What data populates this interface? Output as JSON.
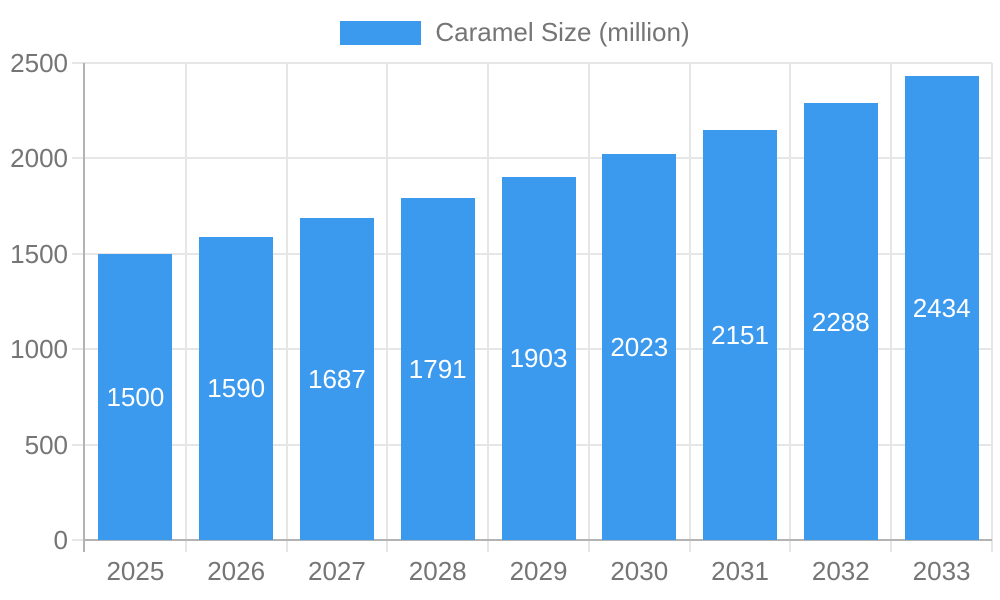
{
  "legend": {
    "label": "Caramel Size (million)",
    "swatch_color": "#3b99ee"
  },
  "chart_data": {
    "type": "bar",
    "title": "",
    "xlabel": "",
    "ylabel": "",
    "categories": [
      "2025",
      "2026",
      "2027",
      "2028",
      "2029",
      "2030",
      "2031",
      "2032",
      "2033"
    ],
    "series": [
      {
        "name": "Caramel Size (million)",
        "values": [
          1500,
          1590,
          1687,
          1791,
          1903,
          2023,
          2151,
          2288,
          2434
        ]
      }
    ],
    "ylim": [
      0,
      2500
    ],
    "ytick_step": 500,
    "grid": true,
    "legend_position": "top",
    "value_labels": "inside-center",
    "colors": {
      "bar": "#3b99ee",
      "grid": "#e6e6e6",
      "axis": "#b3b3b3",
      "tick_text": "#757575",
      "value_text": "#ffffff",
      "background": "#ffffff"
    }
  }
}
